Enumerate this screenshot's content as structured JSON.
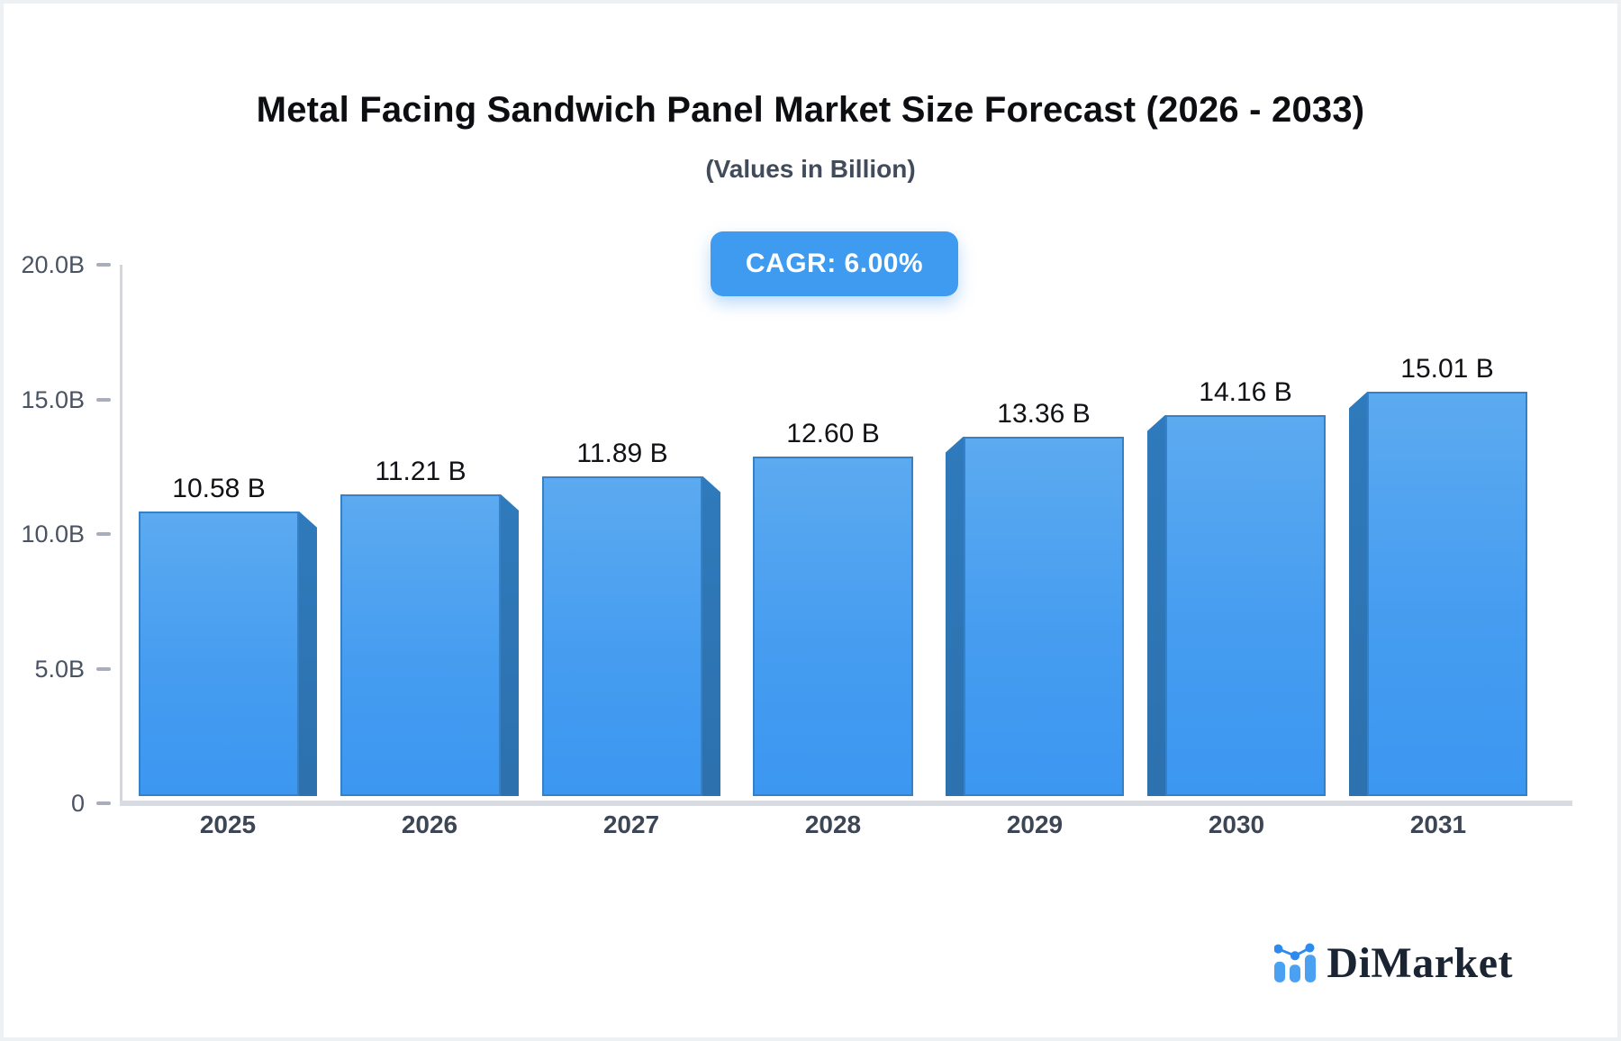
{
  "header": {
    "title": "Metal Facing Sandwich Panel Market Size Forecast (2026 - 2033)",
    "subtitle": "(Values in Billion)"
  },
  "badge": {
    "label": "CAGR: 6.00%",
    "background": "#3f9bf0",
    "text_color": "#ffffff"
  },
  "chart_data": {
    "type": "bar",
    "title": "Metal Facing Sandwich Panel Market Size Forecast (2026 - 2033)",
    "subtitle": "(Values in Billion)",
    "categories": [
      "2025",
      "2026",
      "2027",
      "2028",
      "2029",
      "2030",
      "2031"
    ],
    "values": [
      10.58,
      11.21,
      11.89,
      12.6,
      13.36,
      14.16,
      15.01
    ],
    "value_labels": [
      "10.58 B",
      "11.21 B",
      "11.89 B",
      "12.60 B",
      "13.36 B",
      "14.16 B",
      "15.01 B"
    ],
    "xlabel": "",
    "ylabel": "",
    "ylim": [
      0,
      20
    ],
    "yticks": [
      {
        "value": 20,
        "label": "20.0B"
      },
      {
        "value": 15,
        "label": "15.0B"
      },
      {
        "value": 10,
        "label": "10.0B"
      },
      {
        "value": 5,
        "label": "5.0B"
      },
      {
        "value": 0,
        "label": "0"
      }
    ],
    "grid": false,
    "legend": false,
    "style": {
      "bar_face_top": "#5caaf0",
      "bar_face_bottom": "#3c97f1",
      "bar_border": "#3481ca",
      "bar_side_3d": "#2e76b7",
      "effect": "3d-perspective-toward-center"
    }
  },
  "footer": {
    "brand": "DiMarket",
    "logo_icon": "mini-bar-line-chart-icon",
    "brand_color": "#1a2433",
    "icon_bar_color": "#4aa1f2",
    "icon_dot_color": "#2f8aee"
  }
}
